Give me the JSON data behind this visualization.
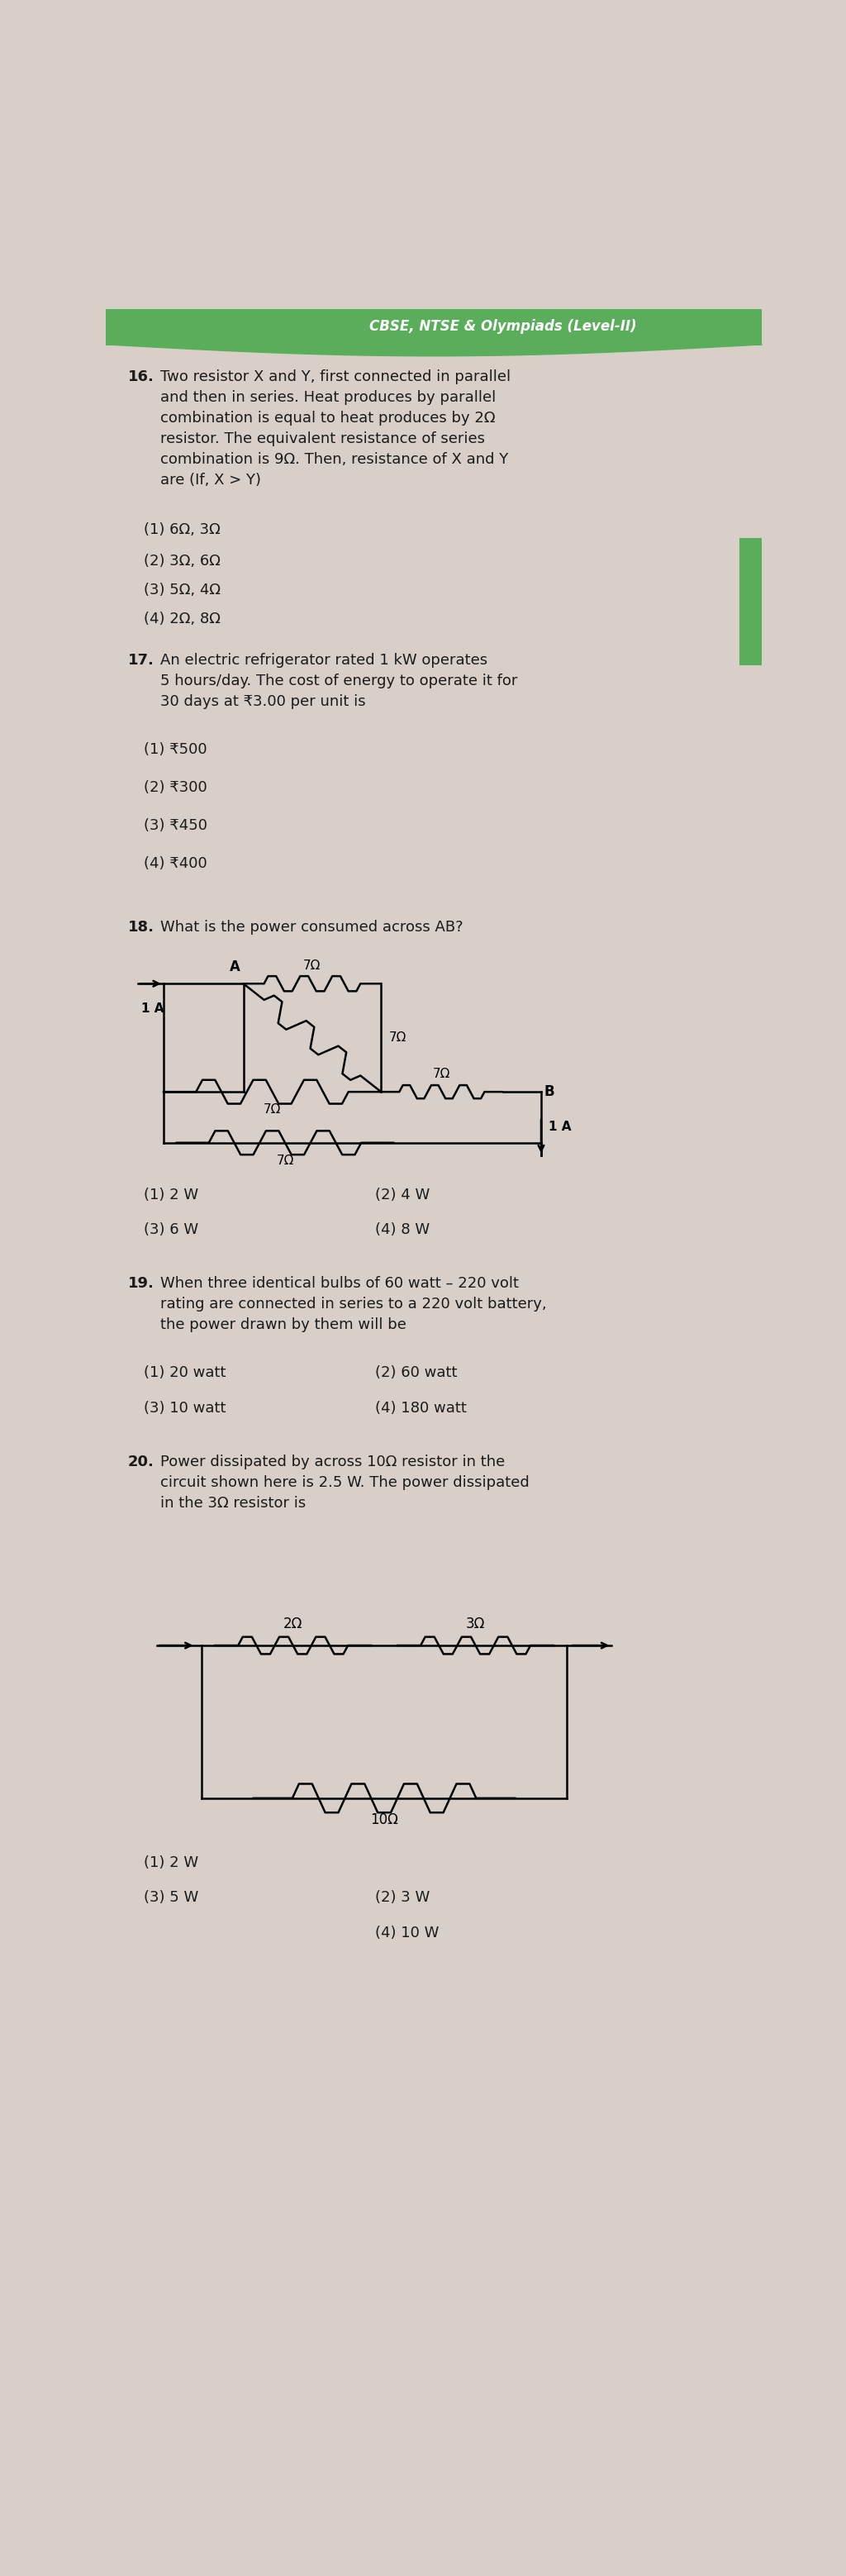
{
  "bg_color": "#d8d0c8",
  "text_color": "#1a1a1a",
  "header_color": "#5aad5a",
  "header_text": "CBSE, NTSE & Olympiads (Level-II)",
  "q16_num": "16.",
  "q16_text": "Two resistor X and Y, first connected in parallel\nand then in series. Heat produces by parallel\ncombination is equal to heat produces by 2Ω\nresistor. The equivalent resistance of series\ncombination is 9Ω. Then, resistance of X and Y\nare (If, X > Y)",
  "q16_options": [
    "(1) 6Ω, 3Ω",
    "(2) 3Ω, 6Ω",
    "(3) 5Ω, 4Ω",
    "(4) 2Ω, 8Ω"
  ],
  "q17_num": "17.",
  "q17_text": "An electric refrigerator rated 1 kW operates\n5 hours/day. The cost of energy to operate it for\n30 days at ₹3.00 per unit is",
  "q17_options": [
    "(1) ₹500",
    "(2) ₹300",
    "(3) ₹450",
    "(4) ₹400"
  ],
  "q18_num": "18.",
  "q18_text": "What is the power consumed across AB?",
  "q18_options_left": [
    "(1) 2 W",
    "(3) 6 W"
  ],
  "q18_options_right": [
    "(2) 4 W",
    "(4) 8 W"
  ],
  "q19_num": "19.",
  "q19_text": "When three identical bulbs of 60 watt – 220 volt\nrating are connected in series to a 220 volt battery,\nthe power drawn by them will be",
  "q19_options_left": [
    "(1) 20 watt",
    "(3) 10 watt"
  ],
  "q19_options_right": [
    "(2) 60 watt",
    "(4) 180 watt"
  ],
  "q20_num": "20.",
  "q20_text": "Power dissipated by across 10Ω resistor in the\ncircuit shown here is 2.5 W. The power dissipated\nin the 3Ω resistor is",
  "q20_options_left": [
    "(1) 2 W",
    "(3) 5 W"
  ],
  "q20_options_right": [
    "(2) 3 W",
    "(4) 10 W"
  ]
}
